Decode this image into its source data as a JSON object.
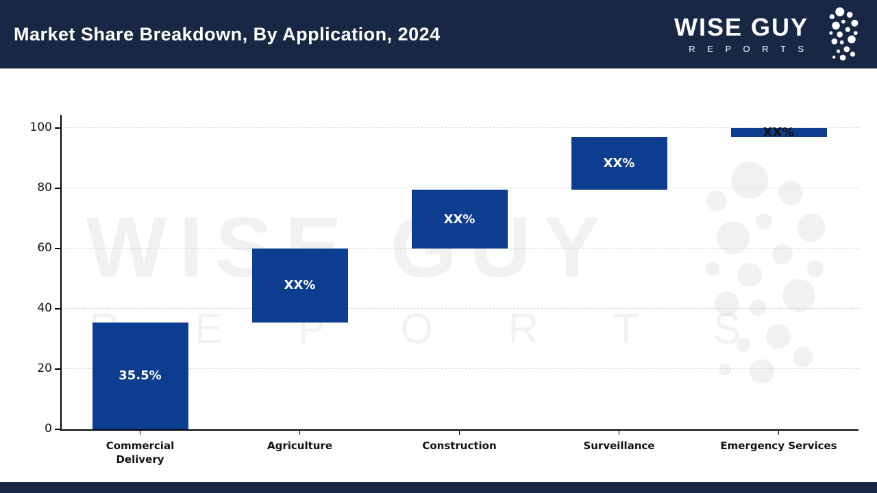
{
  "header": {
    "title": "Market Share Breakdown, By Application, 2024",
    "brand": {
      "line1": "WISE GUY",
      "line2": "R E P O R T S"
    }
  },
  "watermark": {
    "line1": "WISE GUY",
    "line2": "R E P O R T S"
  },
  "chart_data": {
    "type": "bar",
    "subtype": "waterfall",
    "title": "Market Share Breakdown, By Application, 2024",
    "categories": [
      "Commercial\nDelivery",
      "Agriculture",
      "Construction",
      "Surveillance",
      "Emergency Services"
    ],
    "segments": [
      {
        "category": "Commercial Delivery",
        "start": 0,
        "end": 35.5,
        "label": "35.5%",
        "label_color": "#ffffff"
      },
      {
        "category": "Agriculture",
        "start": 35.5,
        "end": 60,
        "label": "XX%",
        "label_color": "#ffffff"
      },
      {
        "category": "Construction",
        "start": 60,
        "end": 79.5,
        "label": "XX%",
        "label_color": "#ffffff"
      },
      {
        "category": "Surveillance",
        "start": 79.5,
        "end": 97,
        "label": "XX%",
        "label_color": "#ffffff"
      },
      {
        "category": "Emergency Services",
        "start": 97,
        "end": 100,
        "label": "XX%",
        "label_color": "#111111"
      }
    ],
    "y_ticks": [
      0,
      20,
      40,
      60,
      80,
      100
    ],
    "ylim": [
      0,
      105
    ],
    "xlabel": "",
    "ylabel": "",
    "bar_color": "#0c3d8f",
    "grid": "horizontal dashed",
    "legend": "none"
  }
}
